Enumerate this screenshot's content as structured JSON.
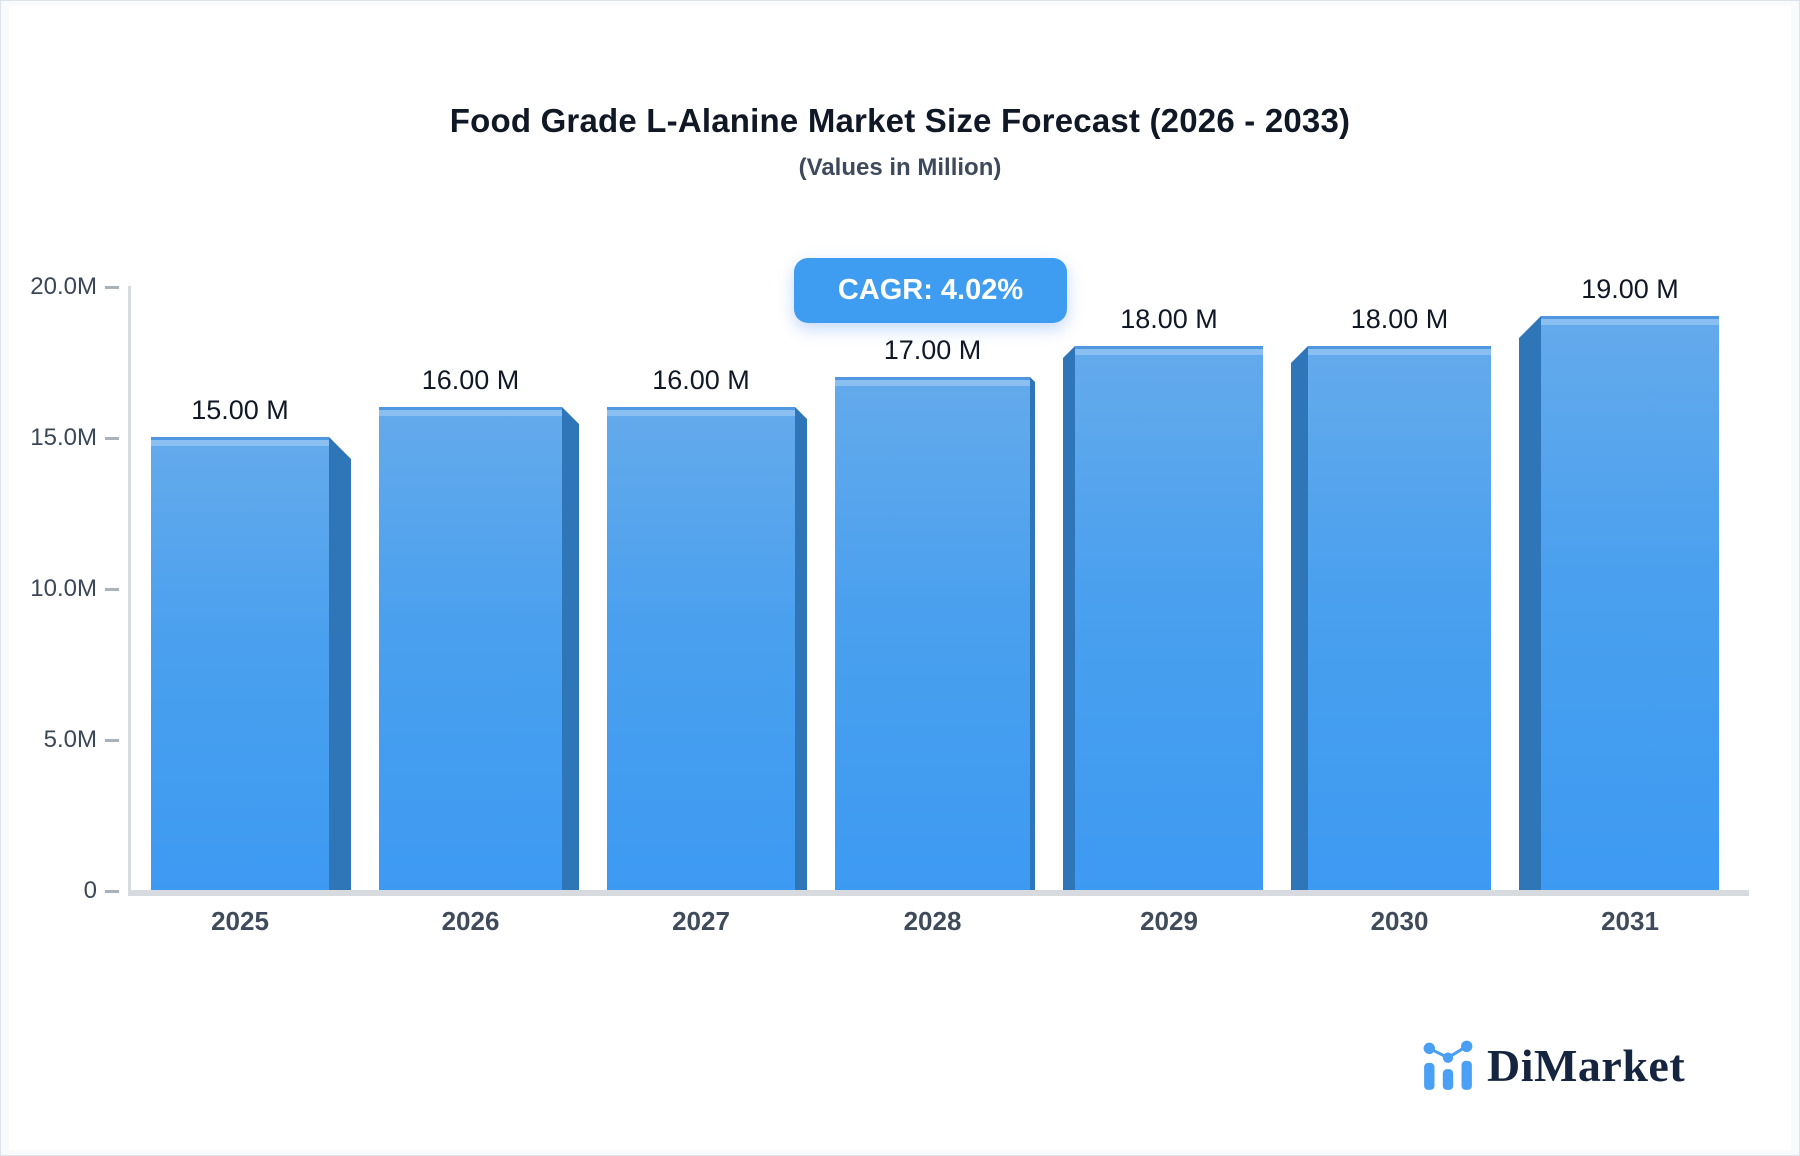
{
  "page": {
    "background": "#f8fafc",
    "card_background": "#ffffff"
  },
  "header": {
    "title": "Food Grade L-Alanine Market Size Forecast (2026 - 2033)",
    "subtitle": "(Values in Million)"
  },
  "badge": {
    "label": "CAGR: 4.02%",
    "background": "#3f9df1",
    "text_color": "#ffffff"
  },
  "chart_data": {
    "type": "bar",
    "categories": [
      "2025",
      "2026",
      "2027",
      "2028",
      "2029",
      "2030",
      "2031"
    ],
    "values": [
      15,
      16,
      16,
      17,
      18,
      18,
      19
    ],
    "value_labels": [
      "15.00 M",
      "16.00 M",
      "16.00 M",
      "17.00 M",
      "18.00 M",
      "18.00 M",
      "19.00 M"
    ],
    "title": "Food Grade L-Alanine Market Size Forecast (2026 - 2033)",
    "subtitle": "(Values in Million)",
    "unit": "Million",
    "xlabel": "",
    "ylabel": "",
    "ylim": [
      0,
      20
    ],
    "y_ticks": [
      {
        "value": 0,
        "label": "0"
      },
      {
        "value": 5,
        "label": "5.0M"
      },
      {
        "value": 10,
        "label": "10.0M"
      },
      {
        "value": 15,
        "label": "15.0M"
      },
      {
        "value": 20,
        "label": "20.0M"
      }
    ],
    "grid": false,
    "legend": false,
    "annotation": "CAGR: 4.02%",
    "bar_colors": {
      "face_top": "#64aaec",
      "face_bottom": "#3d9af2",
      "side": "#2e76b7",
      "top_edge": "#4f97e0"
    }
  },
  "branding": {
    "name": "DiMarket",
    "logo_icon": "mini-bar-line-chart-icon",
    "icon_color": "#4aa0f4",
    "text_color": "#16253f"
  }
}
